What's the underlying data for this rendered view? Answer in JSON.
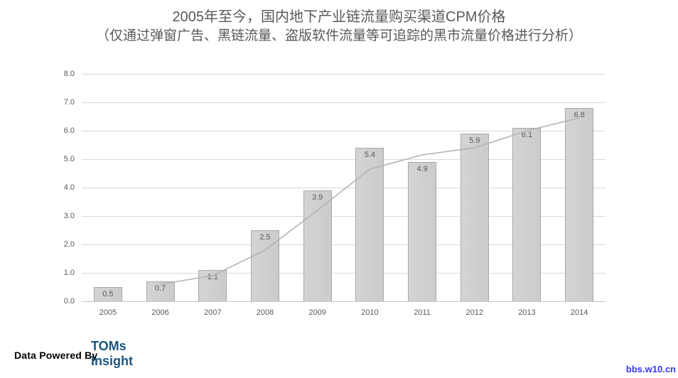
{
  "title": "2005年至今，国内地下产业链流量购买渠道CPM价格",
  "subtitle": "（仅通过弹窗广告、黑链流量、盗版软件流量等可追踪的黑市流量价格进行分析）",
  "footer": {
    "powered_by": "Data Powered By",
    "brand_line1": "TOMs",
    "brand_line2": "Insight",
    "watermark": "bbs.w10.cn"
  },
  "colors": {
    "title_text": "#595959",
    "bar_fill_light": "#d4d4d4",
    "bar_fill_dark": "#cbcbcb",
    "bar_border": "#a8a8a8",
    "gridline": "#d9d9d9",
    "axis_line": "#c6c6c6",
    "tick_label": "#595959",
    "trendline": "#b3b3b3",
    "brand_blue": "#1a5683",
    "watermark_blue": "#3434ff"
  },
  "chart_data": {
    "type": "bar",
    "title": "2005年至今，国内地下产业链流量购买渠道CPM价格",
    "subtitle": "（仅通过弹窗广告、黑链流量、盗版软件流量等可追踪的黑市流量价格进行分析）",
    "categories": [
      "2005",
      "2006",
      "2007",
      "2008",
      "2009",
      "2010",
      "2011",
      "2012",
      "2013",
      "2014"
    ],
    "series": [
      {
        "name": "bars",
        "type": "bar",
        "values": [
          0.5,
          0.7,
          1.1,
          2.5,
          3.9,
          5.4,
          4.9,
          5.9,
          6.1,
          6.8
        ]
      },
      {
        "name": "trend_line",
        "type": "line",
        "values": [
          null,
          0.6,
          0.9,
          1.8,
          3.2,
          4.65,
          5.15,
          5.4,
          6.0,
          6.45
        ]
      }
    ],
    "data_labels": [
      "0.5",
      "0.7",
      "1.1",
      "2.5",
      "3.9",
      "5.4",
      "4.9",
      "5.9",
      "6.1",
      "6.8"
    ],
    "xlabel": "",
    "ylabel": "",
    "ylim": [
      0,
      8
    ],
    "ytick_step": 1.0,
    "ytick_labels": [
      "0.0",
      "1.0",
      "2.0",
      "3.0",
      "4.0",
      "5.0",
      "6.0",
      "7.0",
      "8.0"
    ],
    "grid": true,
    "legend_position": "none"
  }
}
